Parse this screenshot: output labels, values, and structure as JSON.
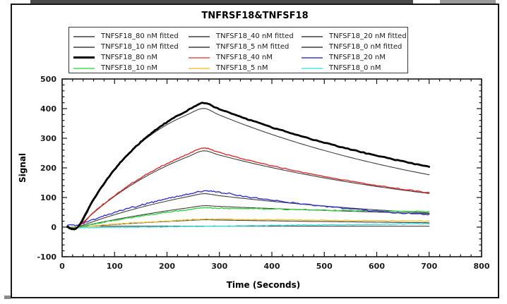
{
  "chrome": {
    "top_strip_left_color": "#4a4a4a",
    "top_strip_right_color": "#9a9a9a"
  },
  "chart_data": {
    "type": "line",
    "title": "TNFRSF18&TNFSF18",
    "xlabel": "Time (Seconds)",
    "ylabel": "Signal",
    "xlim": [
      0,
      800
    ],
    "ylim": [
      -100,
      500
    ],
    "x_ticks": [
      0,
      100,
      200,
      300,
      400,
      500,
      600,
      700,
      800
    ],
    "x_tick_labels": [
      "0",
      "100",
      "200",
      "300",
      "400",
      "500",
      "600",
      "700",
      "800"
    ],
    "y_ticks": [
      500,
      400,
      300,
      200,
      100,
      0,
      -100
    ],
    "y_tick_labels": [
      "500",
      "400",
      "300",
      "200",
      "100",
      "0",
      "-100"
    ],
    "x_minor_step": 20,
    "y_minor_step": 20,
    "grid": false,
    "legend_position": "top-inside",
    "t": [
      10,
      30,
      60,
      90,
      120,
      150,
      180,
      210,
      240,
      270,
      300,
      350,
      400,
      450,
      500,
      550,
      600,
      650,
      700
    ],
    "series": [
      {
        "name": "TNFSF18_80 nM fitted",
        "kind": "fitted",
        "color": "#3f3f3f",
        "legend_color": "#6e6e6e",
        "width": 1.1,
        "noise": 0,
        "values": [
          null,
          0,
          96.7,
          174.0,
          235.6,
          284.8,
          324.1,
          355.5,
          380.6,
          400.6,
          378.4,
          344.1,
          312.9,
          284.4,
          258.6,
          235.1,
          213.8,
          194.4,
          176.7
        ]
      },
      {
        "name": "TNFSF18_40 nM fitted",
        "kind": "fitted",
        "color": "#3f3f3f",
        "legend_color": "#6e6e6e",
        "width": 1.1,
        "noise": 0,
        "values": [
          null,
          0,
          48.4,
          90.9,
          128.3,
          161.2,
          190.1,
          215.5,
          237.8,
          257.5,
          243.2,
          221.0,
          200.9,
          182.7,
          166.1,
          151.0,
          137.2,
          124.8,
          113.4
        ]
      },
      {
        "name": "TNFSF18_20 nM fitted",
        "kind": "fitted",
        "color": "#3f3f3f",
        "legend_color": "#6e6e6e",
        "width": 1.1,
        "noise": 0,
        "values": [
          null,
          0,
          19.1,
          36.5,
          52.3,
          66.8,
          79.9,
          91.9,
          102.9,
          112.8,
          106.2,
          96.1,
          87.0,
          78.7,
          71.2,
          64.4,
          58.3,
          52.8,
          47.7
        ]
      },
      {
        "name": "TNFSF18_10 nM fitted",
        "kind": "fitted",
        "color": "#3f3f3f",
        "legend_color": "#6e6e6e",
        "width": 1.1,
        "noise": 0,
        "values": [
          null,
          0,
          11.2,
          21.8,
          31.6,
          40.8,
          49.5,
          57.6,
          65.1,
          72.2,
          69.9,
          66.2,
          62.8,
          59.5,
          56.5,
          53.6,
          50.8,
          48.2,
          45.7
        ]
      },
      {
        "name": "TNFSF18_5 nM fitted",
        "kind": "fitted",
        "color": "#3f3f3f",
        "legend_color": "#6e6e6e",
        "width": 1.1,
        "noise": 0,
        "values": [
          null,
          0,
          4.0,
          7.7,
          11.1,
          14.3,
          17.2,
          19.9,
          22.5,
          24.8,
          23.9,
          22.5,
          21.2,
          20.0,
          18.8,
          17.8,
          16.7,
          15.8,
          14.8
        ]
      },
      {
        "name": "TNFSF18_0 nM fitted",
        "kind": "fitted",
        "color": "#3f3f3f",
        "legend_color": "#6e6e6e",
        "width": 1.1,
        "noise": 0,
        "values": [
          null,
          3,
          3,
          3,
          3,
          3,
          3,
          3,
          3,
          3,
          3,
          3,
          3,
          3,
          3,
          3,
          3,
          3,
          3
        ]
      },
      {
        "name": "TNFSF18_80 nM",
        "kind": "measured",
        "color": "#000000",
        "legend_color": "#000000",
        "width": 2.8,
        "noise": 2.0,
        "values": [
          0,
          0,
          93.9,
          171.2,
          234.8,
          287.1,
          330.2,
          365.6,
          394.8,
          419.0,
          398.5,
          366.6,
          337.1,
          310.1,
          285.2,
          262.3,
          241.2,
          221.9,
          204.1
        ]
      },
      {
        "name": "TNFSF18_40 nM",
        "kind": "measured",
        "color": "#d92b2b",
        "legend_color": "#ef7a7a",
        "width": 1.4,
        "noise": 2.2,
        "values": [
          0,
          0,
          49.7,
          93.5,
          132.2,
          166.2,
          196.3,
          222.8,
          246.2,
          266.7,
          251.6,
          228.4,
          207.2,
          188.1,
          170.7,
          154.9,
          140.6,
          127.6,
          115.8
        ]
      },
      {
        "name": "TNFSF18_20 nM",
        "kind": "measured",
        "color": "#3232c8",
        "legend_color": "#6a6ade",
        "width": 1.4,
        "noise": 3.0,
        "values": [
          7,
          7,
          26.1,
          43.6,
          59.5,
          74.1,
          87.5,
          99.6,
          110.8,
          121.0,
          117.9,
          103.5,
          90.9,
          79.9,
          70.2,
          61.7,
          54.2,
          47.6,
          41.9
        ]
      },
      {
        "name": "TNFSF18_10 nM",
        "kind": "measured",
        "color": "#38d244",
        "legend_color": "#74e87e",
        "width": 1.4,
        "noise": 2.2,
        "values": [
          0,
          0,
          10.2,
          19.7,
          28.6,
          36.9,
          44.7,
          52.0,
          58.8,
          65.2,
          64.2,
          62.5,
          60.9,
          59.3,
          57.7,
          56.2,
          54.7,
          53.2,
          51.8
        ]
      },
      {
        "name": "TNFSF18_5 nM",
        "kind": "measured",
        "color": "#eec43c",
        "legend_color": "#f4d376",
        "width": 1.4,
        "noise": 1.8,
        "values": [
          0,
          0,
          4.3,
          8.4,
          12.1,
          15.6,
          18.8,
          21.7,
          24.5,
          27.1,
          26.5,
          25.6,
          24.7,
          23.9,
          23.1,
          22.3,
          21.5,
          20.8,
          20.1
        ]
      },
      {
        "name": "TNFSF18_0 nM",
        "kind": "measured",
        "color": "#3edede",
        "legend_color": "#7cecec",
        "width": 1.4,
        "noise": 1.8,
        "values": [
          -2,
          -2,
          -1.4,
          -0.8,
          -0.2,
          0.4,
          1.0,
          1.6,
          2.2,
          2.8,
          3.4,
          4.4,
          5.4,
          6.4,
          7.4,
          8.4,
          9.4,
          10.4,
          11.4
        ]
      }
    ]
  }
}
